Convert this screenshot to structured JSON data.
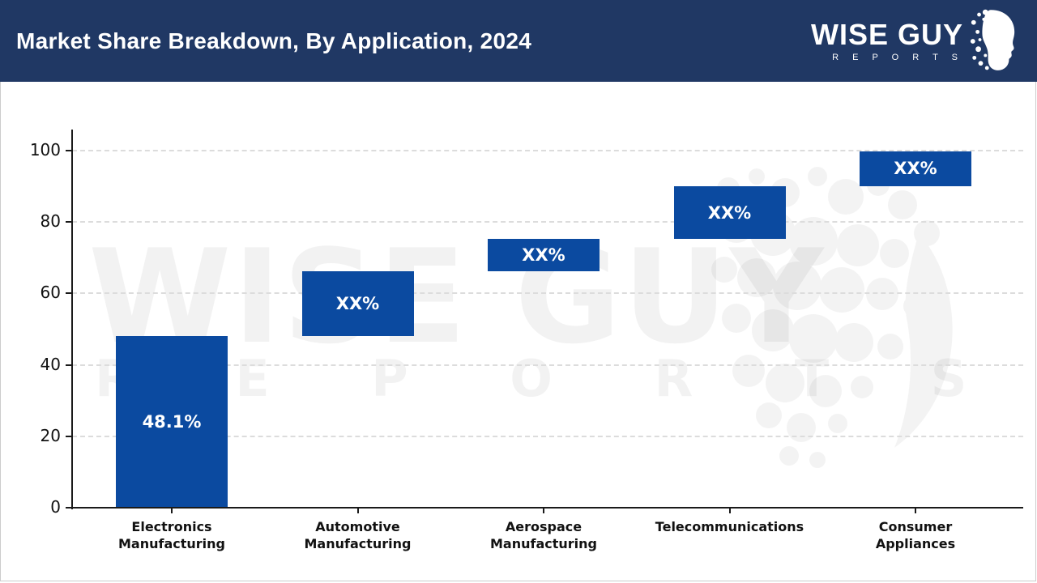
{
  "header": {
    "title": "Market Share Breakdown, By Application, 2024",
    "logo_line1": "WISE GUY",
    "logo_line2": "R E P O R T S"
  },
  "watermark": {
    "line1": "WISE GUY",
    "line2": "R E P O R T S"
  },
  "colors": {
    "header_bg": "#203864",
    "bar": "#0b4aa0",
    "grid": "#dcdcdc",
    "axis": "#1a1a1a",
    "bar_label_text": "#ffffff"
  },
  "chart_data": {
    "type": "bar",
    "subtype": "waterfall",
    "title": "Market Share Breakdown, By Application, 2024",
    "unit": "percent market share",
    "categories": [
      "Electronics Manufacturing",
      "Automotive Manufacturing",
      "Aerospace Manufacturing",
      "Telecommunications",
      "Consumer Appliances"
    ],
    "category_lines": [
      [
        "Electronics",
        "Manufacturing"
      ],
      [
        "Automotive",
        "Manufacturing"
      ],
      [
        "Aerospace",
        "Manufacturing"
      ],
      [
        "Telecommunications"
      ],
      [
        "Consumer",
        "Appliances"
      ]
    ],
    "segments": [
      {
        "category": "Electronics Manufacturing",
        "start": 0,
        "end": 48.1,
        "value": 48.1,
        "label": "48.1%"
      },
      {
        "category": "Automotive Manufacturing",
        "start": 48.1,
        "end": 66.1,
        "value": 18.0,
        "label": "XX%"
      },
      {
        "category": "Aerospace Manufacturing",
        "start": 66.1,
        "end": 75.3,
        "value": 9.2,
        "label": "XX%"
      },
      {
        "category": "Telecommunications",
        "start": 75.3,
        "end": 90.0,
        "value": 14.7,
        "label": "XX%"
      },
      {
        "category": "Consumer Appliances",
        "start": 90.0,
        "end": 99.8,
        "value": 9.8,
        "label": "XX%"
      }
    ],
    "yticks": [
      0,
      20,
      40,
      60,
      80,
      100
    ],
    "ylim": [
      0,
      106
    ],
    "xlabel": "",
    "ylabel": "",
    "grid": "horizontal-dashed",
    "legend": null
  }
}
